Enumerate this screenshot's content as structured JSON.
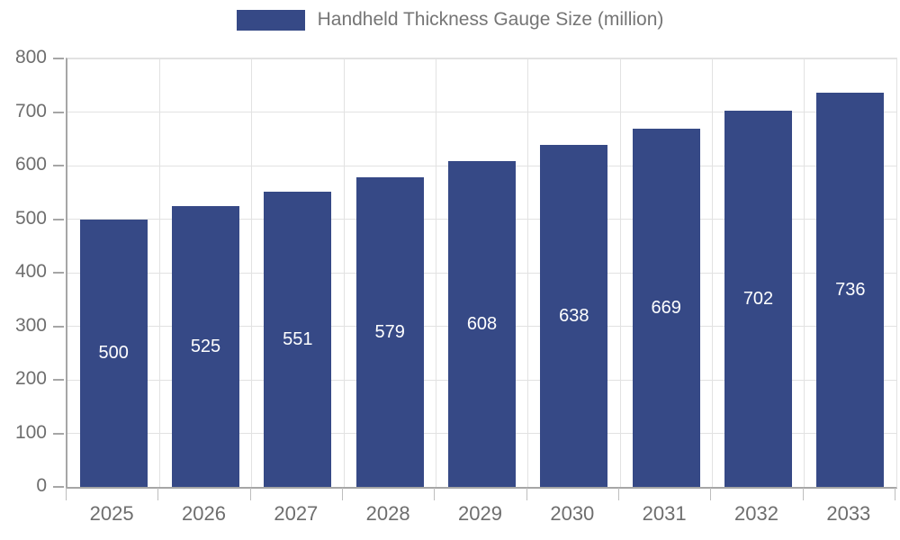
{
  "legend": {
    "label": "Handheld Thickness Gauge Size (million)"
  },
  "chart_data": {
    "type": "bar",
    "title": "Handheld Thickness Gauge Size (million)",
    "categories": [
      "2025",
      "2026",
      "2027",
      "2028",
      "2029",
      "2030",
      "2031",
      "2032",
      "2033"
    ],
    "values": [
      500,
      525,
      551,
      579,
      608,
      638,
      669,
      702,
      736
    ],
    "series": [
      {
        "name": "Handheld Thickness Gauge Size (million)",
        "values": [
          500,
          525,
          551,
          579,
          608,
          638,
          669,
          702,
          736
        ]
      }
    ],
    "xlabel": "",
    "ylabel": "",
    "ylim": [
      0,
      800
    ],
    "yticks": [
      0,
      100,
      200,
      300,
      400,
      500,
      600,
      700,
      800
    ],
    "grid": true,
    "legend_position": "top-center",
    "bar_labels_inside": true,
    "colors": {
      "bar": "#364986",
      "bar_label": "#ffffff",
      "axis_line": "#a6a6a6",
      "gridline": "#e2e2e2",
      "tick_label": "#6e6e6e",
      "legend_text": "#757575"
    }
  }
}
